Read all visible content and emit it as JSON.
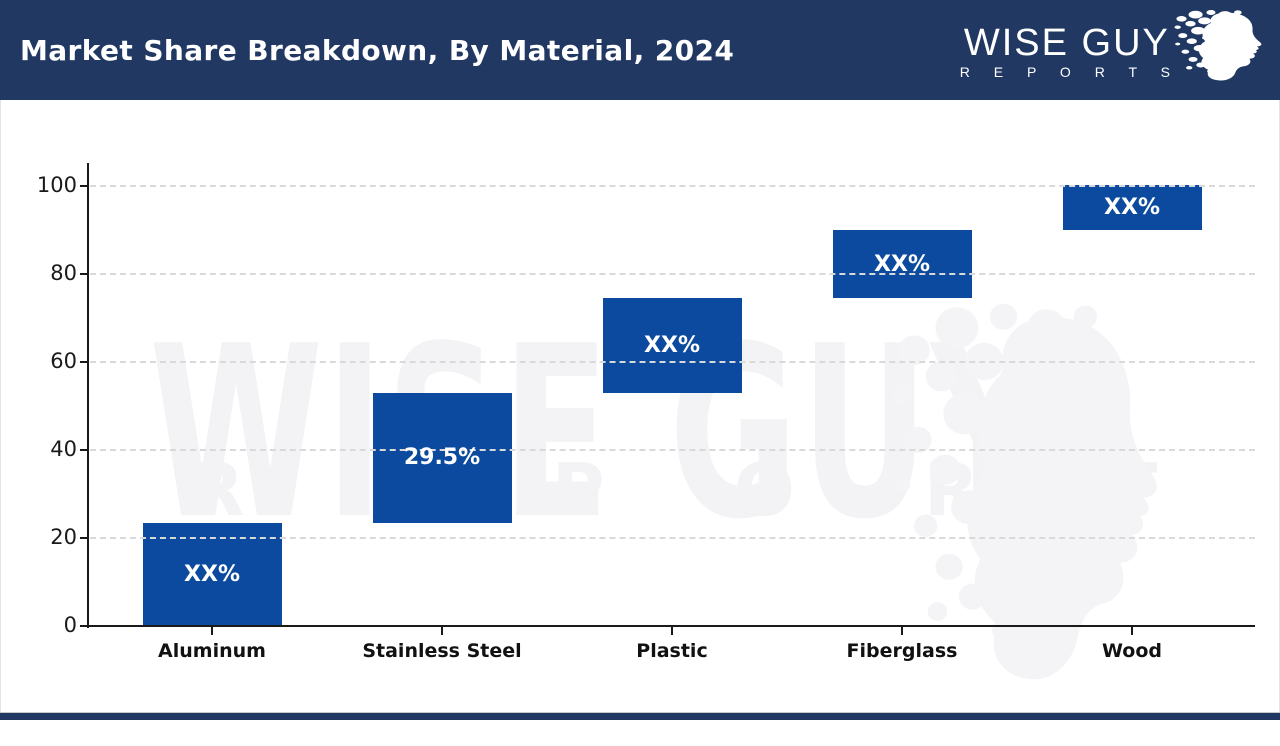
{
  "header": {
    "title": "Market Share Breakdown, By Material, 2024",
    "logo": {
      "line1": "WISE GUY",
      "line2": "R E P O R T S"
    }
  },
  "watermark": {
    "line1": "WISE GUY",
    "line2": "R E P O R T S"
  },
  "colors": {
    "header_bg": "#213863",
    "bar_blue": "#0b4a9e",
    "gridline": "#d9d9d9",
    "axis": "#1a1a1a",
    "watermark": "#f3f3f5"
  },
  "chart_data": {
    "type": "bar",
    "subtype": "waterfall-floating-segments",
    "title": "Market Share Breakdown, By Material, 2024",
    "categories": [
      "Aluminum",
      "Stainless Steel",
      "Plastic",
      "Fiberglass",
      "Wood"
    ],
    "segments": [
      {
        "category": "Aluminum",
        "start": 0,
        "end": 23.5,
        "label": "XX%"
      },
      {
        "category": "Stainless Steel",
        "start": 23.5,
        "end": 53,
        "label": "29.5%"
      },
      {
        "category": "Plastic",
        "start": 53,
        "end": 74.5,
        "label": "XX%"
      },
      {
        "category": "Fiberglass",
        "start": 74.5,
        "end": 90,
        "label": "XX%"
      },
      {
        "category": "Wood",
        "start": 90,
        "end": 100.3,
        "label": "XX%"
      }
    ],
    "xlabel": "",
    "ylabel": "",
    "ylim": [
      0,
      105
    ],
    "yticks": [
      0,
      20,
      40,
      60,
      80,
      100
    ],
    "grid": "horizontal-dashed",
    "legend": "none",
    "bar_color": "#0b4a9e",
    "bar_label_color": "#ffffff"
  }
}
